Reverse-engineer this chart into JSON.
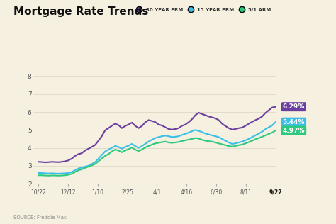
{
  "title": "Mortgage Rate Trends",
  "background_color": "#f5f0df",
  "source_text": "SOURCE: Freddie Mac",
  "x_labels": [
    "10/22",
    "12/12",
    "1/10",
    "2/25",
    "4/1",
    "4/16",
    "6/30",
    "8/11",
    "9/22"
  ],
  "ylim": [
    2,
    8.5
  ],
  "yticks": [
    2,
    3,
    4,
    5,
    6,
    7,
    8
  ],
  "legend": [
    {
      "label": "30 YEAR FRM",
      "color": "#6b3fa0"
    },
    {
      "label": "15 YEAR FRM",
      "color": "#3bbfe8"
    },
    {
      "label": "5/1 ARM",
      "color": "#2ec97e"
    }
  ],
  "end_labels": [
    {
      "value": "6.29%",
      "bg": "#6b3fa0"
    },
    {
      "value": "5.44%",
      "bg": "#3bbfe8"
    },
    {
      "value": "4.97%",
      "bg": "#2ec97e"
    }
  ],
  "series_30yr": [
    3.22,
    3.21,
    3.19,
    3.2,
    3.22,
    3.21,
    3.2,
    3.22,
    3.25,
    3.3,
    3.4,
    3.55,
    3.65,
    3.7,
    3.85,
    3.95,
    4.05,
    4.16,
    4.4,
    4.65,
    4.98,
    5.1,
    5.23,
    5.35,
    5.27,
    5.1,
    5.22,
    5.3,
    5.41,
    5.23,
    5.1,
    5.22,
    5.42,
    5.55,
    5.5,
    5.44,
    5.3,
    5.25,
    5.15,
    5.05,
    5.02,
    5.05,
    5.1,
    5.23,
    5.3,
    5.43,
    5.6,
    5.82,
    5.96,
    5.89,
    5.82,
    5.75,
    5.7,
    5.65,
    5.55,
    5.35,
    5.22,
    5.1,
    5.02,
    5.05,
    5.1,
    5.13,
    5.23,
    5.35,
    5.45,
    5.55,
    5.63,
    5.75,
    5.95,
    6.1,
    6.25,
    6.29
  ],
  "series_15yr": [
    2.6,
    2.6,
    2.58,
    2.57,
    2.58,
    2.57,
    2.56,
    2.57,
    2.58,
    2.6,
    2.65,
    2.75,
    2.85,
    2.9,
    2.95,
    3.0,
    3.1,
    3.2,
    3.4,
    3.6,
    3.8,
    3.9,
    4.0,
    4.1,
    4.05,
    3.95,
    4.05,
    4.12,
    4.22,
    4.1,
    4.0,
    4.1,
    4.22,
    4.35,
    4.45,
    4.55,
    4.6,
    4.65,
    4.68,
    4.65,
    4.6,
    4.62,
    4.65,
    4.72,
    4.78,
    4.85,
    4.93,
    5.0,
    4.95,
    4.88,
    4.8,
    4.75,
    4.7,
    4.65,
    4.6,
    4.5,
    4.4,
    4.3,
    4.22,
    4.25,
    4.3,
    4.35,
    4.42,
    4.5,
    4.6,
    4.7,
    4.8,
    4.9,
    5.05,
    5.15,
    5.25,
    5.44
  ],
  "series_arm": [
    2.47,
    2.47,
    2.46,
    2.45,
    2.46,
    2.46,
    2.45,
    2.46,
    2.47,
    2.5,
    2.55,
    2.65,
    2.75,
    2.8,
    2.88,
    2.95,
    3.02,
    3.1,
    3.25,
    3.4,
    3.55,
    3.65,
    3.8,
    3.9,
    3.85,
    3.75,
    3.85,
    3.92,
    4.02,
    3.9,
    3.82,
    3.9,
    4.02,
    4.1,
    4.18,
    4.25,
    4.28,
    4.32,
    4.35,
    4.3,
    4.28,
    4.3,
    4.33,
    4.38,
    4.42,
    4.46,
    4.5,
    4.55,
    4.52,
    4.45,
    4.4,
    4.37,
    4.35,
    4.3,
    4.25,
    4.2,
    4.15,
    4.1,
    4.07,
    4.1,
    4.15,
    4.18,
    4.25,
    4.32,
    4.4,
    4.48,
    4.55,
    4.62,
    4.7,
    4.78,
    4.85,
    4.97
  ]
}
